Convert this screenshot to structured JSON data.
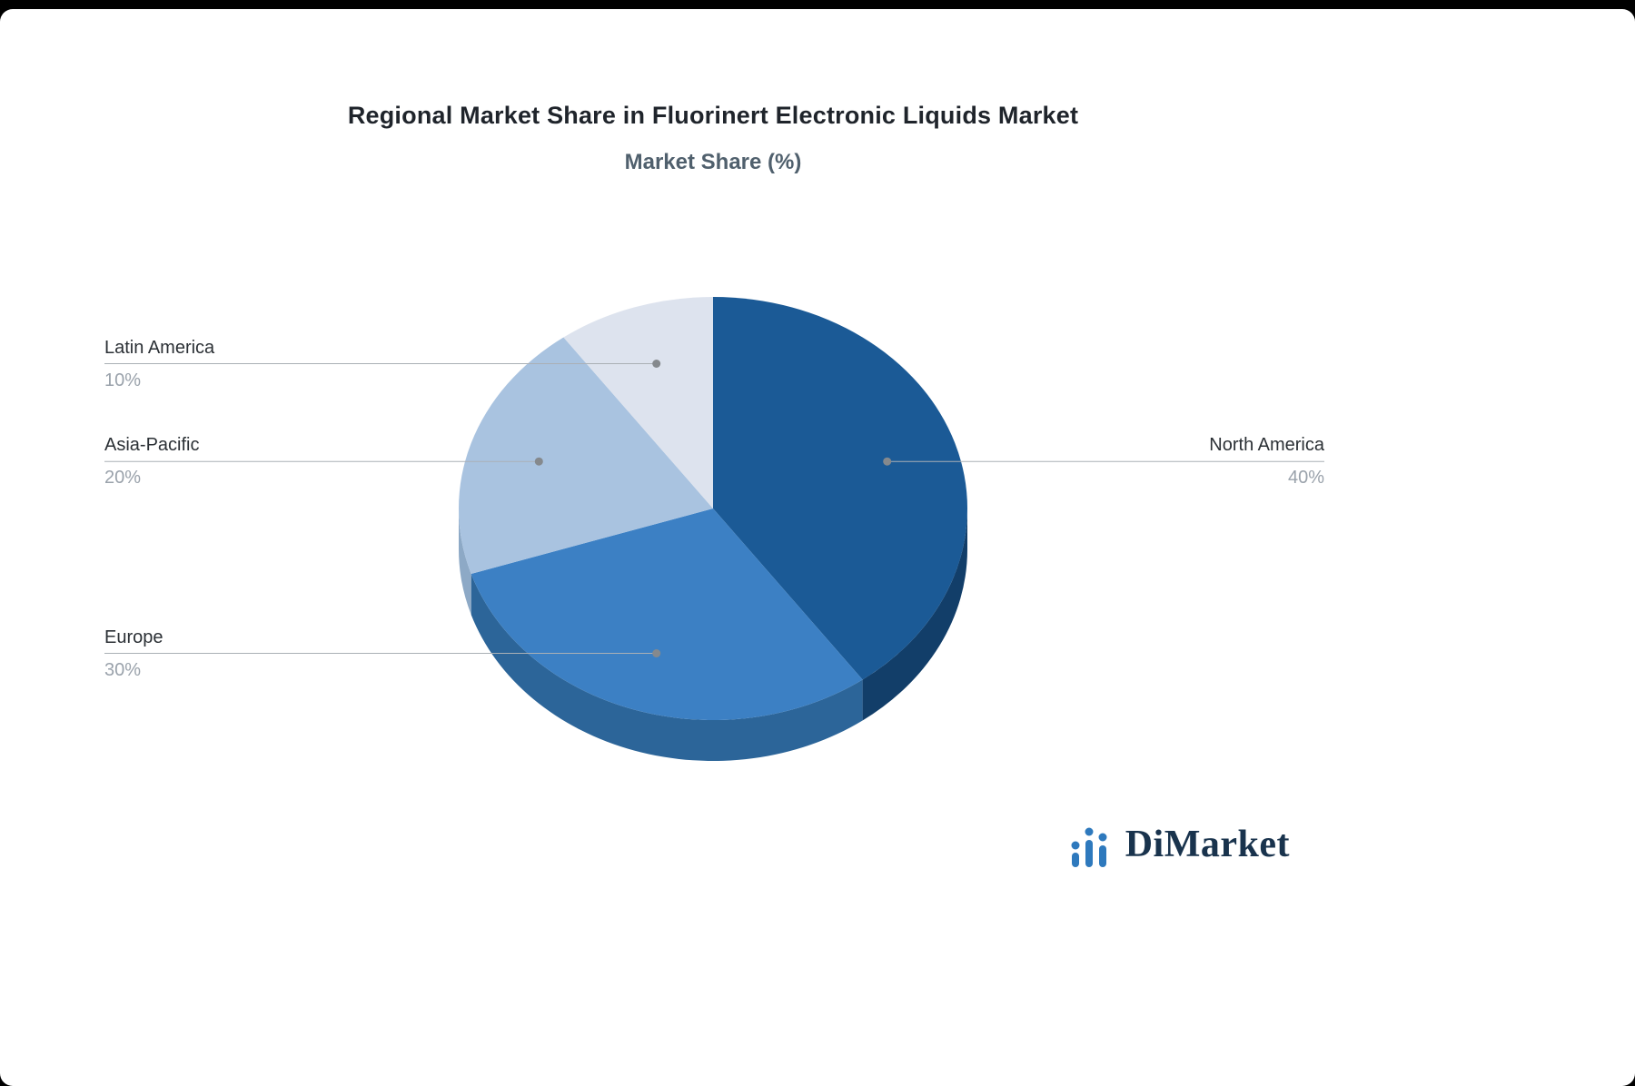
{
  "header": {
    "title": "Regional Market Share in Fluorinert Electronic Liquids Market",
    "subtitle": "Market Share (%)"
  },
  "chart_data": {
    "type": "pie",
    "style": "3d",
    "title": "Regional Market Share in Fluorinert Electronic Liquids Market",
    "subtitle": "Market Share (%)",
    "unit": "%",
    "labels": [
      "North America",
      "Europe",
      "Asia-Pacific",
      "Latin America"
    ],
    "values": [
      40,
      30,
      20,
      10
    ],
    "value_labels": [
      "40%",
      "30%",
      "20%",
      "10%"
    ],
    "colors": [
      "#1b5a96",
      "#3c80c4",
      "#a9c3e0",
      "#dde3ee"
    ],
    "side_colors": [
      "#123e69",
      "#2c6599",
      "#8da9c6",
      "#bfc9d6"
    ],
    "start_angle_deg": 0,
    "direction": "clockwise",
    "label_style": "callout",
    "legend_position": "none"
  },
  "brand": {
    "name": "DiMarket",
    "icon": "bar-chart-logo-icon",
    "text_color": "#19334d",
    "icon_color": "#2e79bd"
  }
}
